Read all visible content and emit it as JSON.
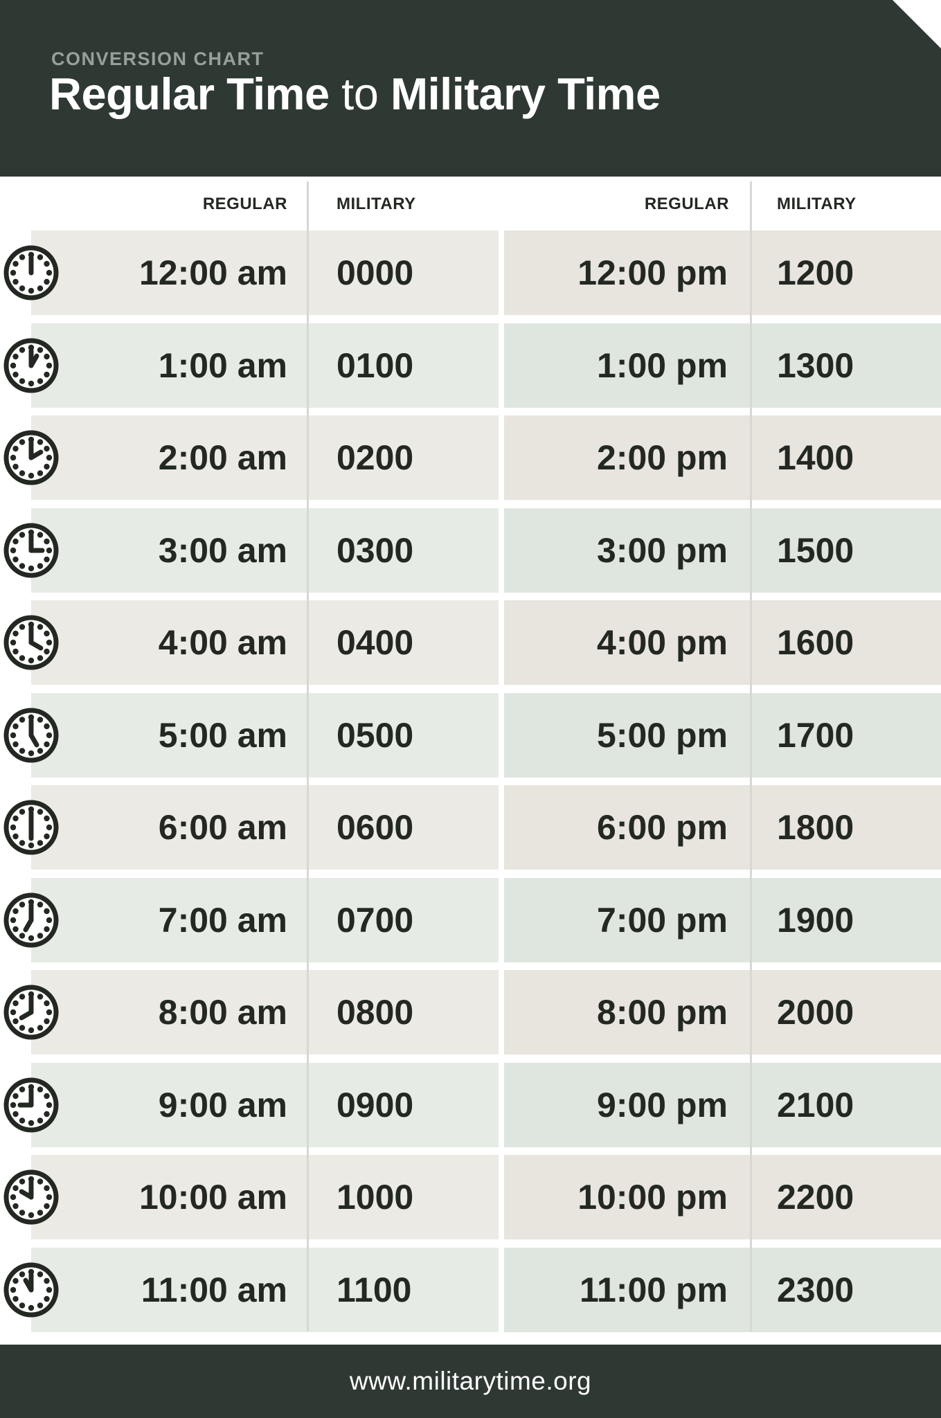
{
  "colors": {
    "dark": "#2F3934",
    "ink": "#242822",
    "kicker": "#97A09A",
    "divider": "#D8D8D3",
    "page_bg": "#FFFFFF",
    "row_odd_left": "#ECEAE4",
    "row_odd_right": "#E8E4DE",
    "row_even_left": "#E6EBE5",
    "row_even_right": "#DFE6DF"
  },
  "header": {
    "kicker": "CONVERSION CHART",
    "title_part1": "Regular Time",
    "title_part2": "to",
    "title_part3": "Military Time"
  },
  "table": {
    "column_headers": {
      "regular": "REGULAR",
      "military": "MILITARY"
    }
  },
  "footer": {
    "website": "www.militarytime.org"
  },
  "chart_data": {
    "type": "table",
    "title": "Regular Time to Military Time",
    "columns": [
      "REGULAR",
      "MILITARY",
      "REGULAR",
      "MILITARY"
    ],
    "rows": [
      {
        "hour": 12,
        "regular_am": "12:00 am",
        "military_am": "0000",
        "regular_pm": "12:00 pm",
        "military_pm": "1200"
      },
      {
        "hour": 1,
        "regular_am": "1:00 am",
        "military_am": "0100",
        "regular_pm": "1:00 pm",
        "military_pm": "1300"
      },
      {
        "hour": 2,
        "regular_am": "2:00 am",
        "military_am": "0200",
        "regular_pm": "2:00 pm",
        "military_pm": "1400"
      },
      {
        "hour": 3,
        "regular_am": "3:00 am",
        "military_am": "0300",
        "regular_pm": "3:00 pm",
        "military_pm": "1500"
      },
      {
        "hour": 4,
        "regular_am": "4:00 am",
        "military_am": "0400",
        "regular_pm": "4:00 pm",
        "military_pm": "1600"
      },
      {
        "hour": 5,
        "regular_am": "5:00 am",
        "military_am": "0500",
        "regular_pm": "5:00 pm",
        "military_pm": "1700"
      },
      {
        "hour": 6,
        "regular_am": "6:00 am",
        "military_am": "0600",
        "regular_pm": "6:00 pm",
        "military_pm": "1800"
      },
      {
        "hour": 7,
        "regular_am": "7:00 am",
        "military_am": "0700",
        "regular_pm": "7:00 pm",
        "military_pm": "1900"
      },
      {
        "hour": 8,
        "regular_am": "8:00 am",
        "military_am": "0800",
        "regular_pm": "8:00 pm",
        "military_pm": "2000"
      },
      {
        "hour": 9,
        "regular_am": "9:00 am",
        "military_am": "0900",
        "regular_pm": "9:00 pm",
        "military_pm": "2100"
      },
      {
        "hour": 10,
        "regular_am": "10:00 am",
        "military_am": "1000",
        "regular_pm": "10:00 pm",
        "military_pm": "2200"
      },
      {
        "hour": 11,
        "regular_am": "11:00 am",
        "military_am": "1100",
        "regular_pm": "11:00 pm",
        "military_pm": "2300"
      }
    ]
  }
}
